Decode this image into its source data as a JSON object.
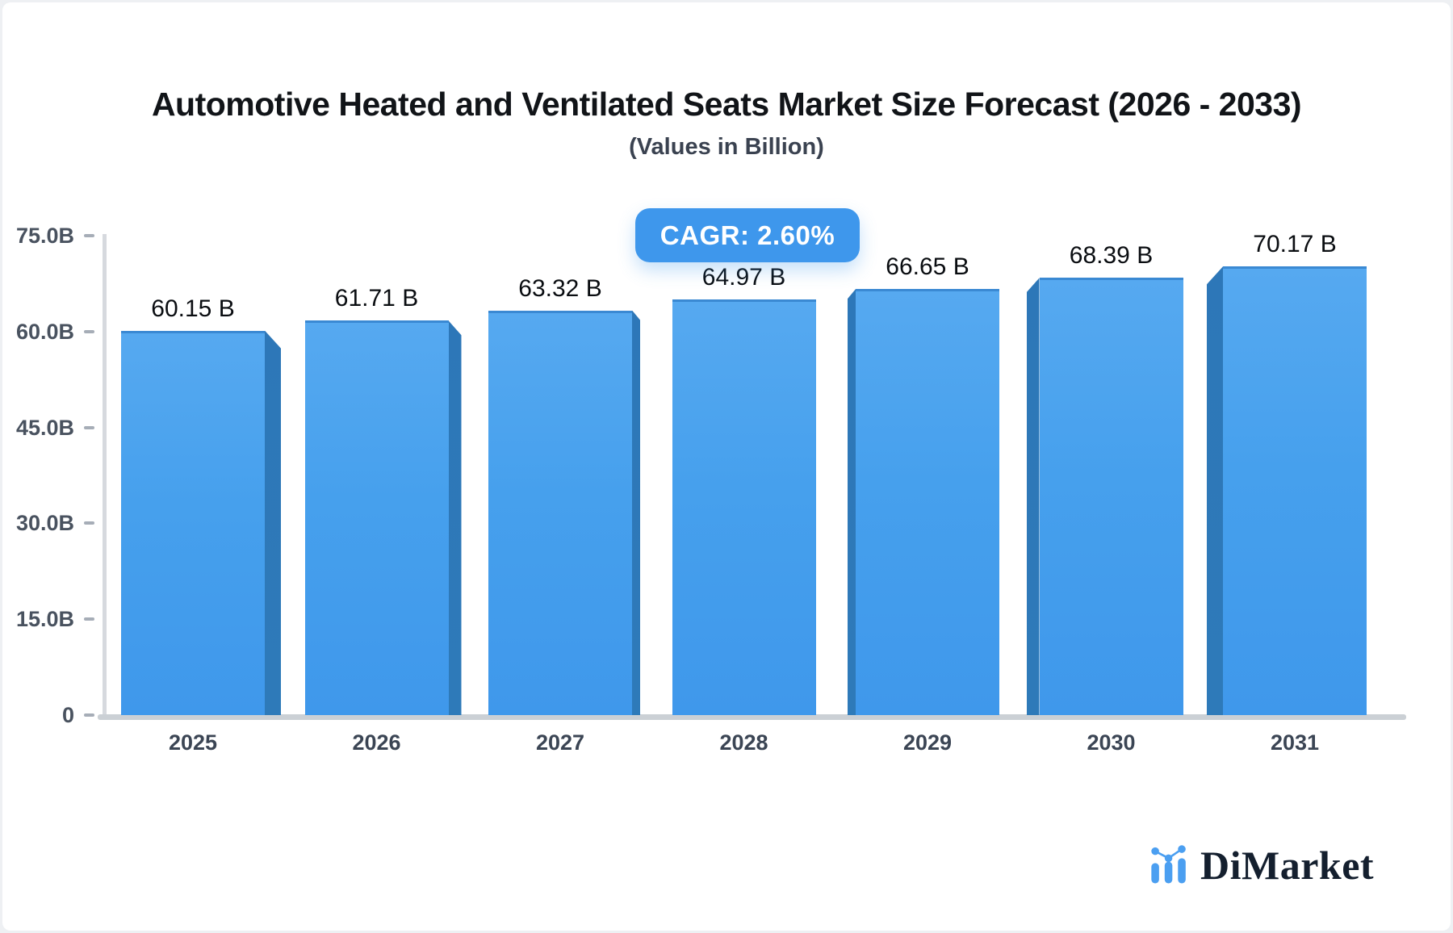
{
  "title": "Automotive Heated and Ventilated Seats Market Size Forecast (2026 - 2033)",
  "subtitle": "(Values in Billion)",
  "cagr_badge": {
    "label": "CAGR: 2.60%",
    "color": "#3e97ec"
  },
  "chart_data": {
    "type": "bar",
    "title": "Automotive Heated and Ventilated Seats Market Size Forecast (2026 - 2033)",
    "subtitle": "(Values in Billion)",
    "categories": [
      "2025",
      "2026",
      "2027",
      "2028",
      "2029",
      "2030",
      "2031"
    ],
    "values": [
      60.15,
      61.71,
      63.32,
      64.97,
      66.65,
      68.39,
      70.17
    ],
    "value_labels": [
      "60.15 B",
      "61.71 B",
      "63.32 B",
      "64.97 B",
      "66.65 B",
      "68.39 B",
      "70.17 B"
    ],
    "xlabel": "",
    "ylabel": "",
    "ylim": [
      0,
      75
    ],
    "yticks": [
      {
        "value": 75,
        "label": "75.0B"
      },
      {
        "value": 60,
        "label": "60.0B"
      },
      {
        "value": 45,
        "label": "45.0B"
      },
      {
        "value": 30,
        "label": "30.0B"
      },
      {
        "value": 15,
        "label": "15.0B"
      },
      {
        "value": 0,
        "label": "0"
      }
    ],
    "grid": false,
    "legend_position": "none",
    "bar_face_color": "#46a0ed",
    "bar_side_color": "#2d77b8",
    "axis_color": "#cbd0d5"
  },
  "logo": {
    "text": "DiMarket",
    "icon": "bar-chart-logo-icon",
    "text_color": "#141f2e",
    "icon_color": "#4b9ff1"
  }
}
